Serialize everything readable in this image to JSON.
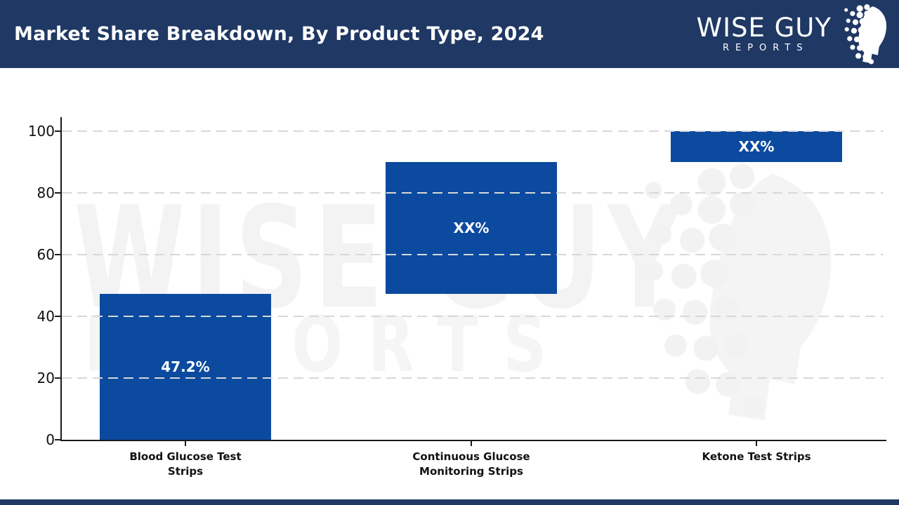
{
  "header": {
    "title": "Market Share Breakdown, By Product Type, 2024",
    "logo": {
      "line1": "WISE GUY",
      "line2": "REPORTS"
    }
  },
  "watermark": {
    "line1": "WISE GUY",
    "line2": "REPORTS"
  },
  "chart_data": {
    "type": "bar",
    "variant": "waterfall-stacked",
    "title": "Market Share Breakdown, By Product Type, 2024",
    "categories": [
      "Blood Glucose Test Strips",
      "Continuous Glucose Monitoring Strips",
      "Ketone Test Strips"
    ],
    "bars": [
      {
        "category": "Blood Glucose Test Strips",
        "start": 0,
        "end": 47.2,
        "label": "47.2%"
      },
      {
        "category": "Continuous Glucose Monitoring Strips",
        "start": 47.2,
        "end": 90,
        "label": "XX%"
      },
      {
        "category": "Ketone Test Strips",
        "start": 90,
        "end": 100,
        "label": "XX%"
      }
    ],
    "xlabel": "",
    "ylabel": "",
    "ylim": [
      0,
      100
    ],
    "yticks": [
      0,
      20,
      40,
      60,
      80,
      100
    ],
    "grid": true,
    "grid_style": "dashed-horizontal",
    "legend": false,
    "colors": {
      "bar": "#0b4a9f",
      "bar_label": "#ffffff",
      "axis": "#1a1a1a",
      "grid": "#d8d8d8",
      "header_bg": "#1f3864",
      "watermark": "#f3f3f3"
    }
  }
}
